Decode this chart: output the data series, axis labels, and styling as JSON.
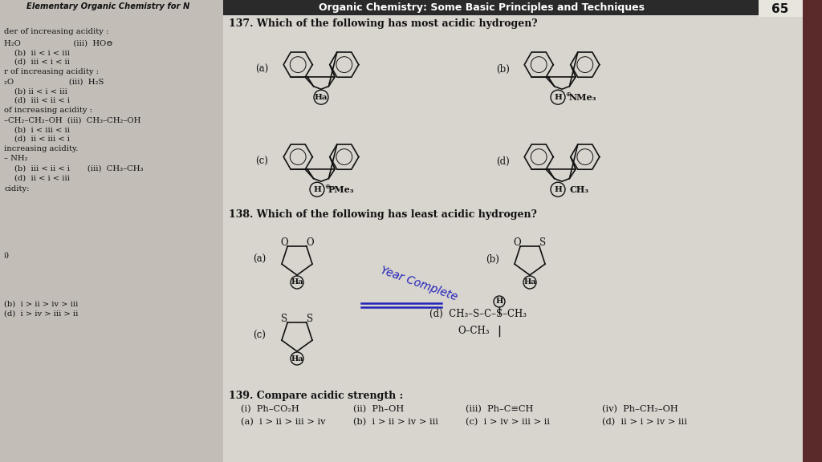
{
  "bg_color": "#b8b4ae",
  "left_panel_color": "#c2bdb7",
  "right_panel_color": "#d8d4ce",
  "dark_strip_color": "#5a2a2a",
  "header_bar_color": "#2a2a2a",
  "header_text": "Organic Chemistry: Some Basic Principles and Techniques",
  "header_text_color": "#ffffff",
  "top_left_text": "Elementary Organic Chemistry for N",
  "page_number": "65",
  "text_color": "#111111",
  "q137_text": "137. Which of the following has most acidic hydrogen?",
  "q138_text": "138. Which of the following has least acidic hydrogen?",
  "q139_text": "139. Compare acidic strength :",
  "q139_i": "(i)  Ph–CO₂H",
  "q139_ii": "(ii)  Ph–OH",
  "q139_iii": "(iii)  Ph–C≡CH",
  "q139_iv": "(iv)  Ph–CH₂–OH",
  "q139_a": "(a)  i > ii > iii > iv",
  "q139_b": "(b)  i > ii > iv > iii",
  "q139_c": "(c)  i > iv > iii > ii",
  "q139_d": "(d)  ii > i > iv > iii",
  "left_lines": [
    [
      5,
      536,
      "der of increasing acidity :"
    ],
    [
      5,
      522,
      "H₂O                     (iii)  HO⊖"
    ],
    [
      18,
      510,
      "(b)  ii < i < iii"
    ],
    [
      18,
      499,
      "(d)  iii < i < ii"
    ],
    [
      5,
      487,
      "r of increasing acidity :"
    ],
    [
      5,
      474,
      "₂O                      (iii)  H₂S"
    ],
    [
      18,
      462,
      "(b) ii < i < iii"
    ],
    [
      18,
      451,
      "(d)  iii < ii < i"
    ],
    [
      5,
      439,
      "of increasing acidity :"
    ],
    [
      5,
      426,
      "–CH₂–CH₂–OH  (iii)  CH₃–CH₂–OH"
    ],
    [
      18,
      414,
      "(b)  i < iii < ii"
    ],
    [
      18,
      403,
      "(d)  ii < iii < i"
    ],
    [
      5,
      390,
      "increasing acidity."
    ],
    [
      5,
      378,
      "– NH₂"
    ],
    [
      18,
      366,
      "(b)  iii < ii < i       (iii)  CH₃–CH₃"
    ],
    [
      18,
      354,
      "(d)  ii < i < iii"
    ],
    [
      5,
      341,
      "cidity:"
    ],
    [
      5,
      258,
      "i)"
    ],
    [
      5,
      197,
      "(b)  i > ii > iv > iii"
    ],
    [
      5,
      185,
      "(d)  i > iv > iii > ii"
    ]
  ]
}
